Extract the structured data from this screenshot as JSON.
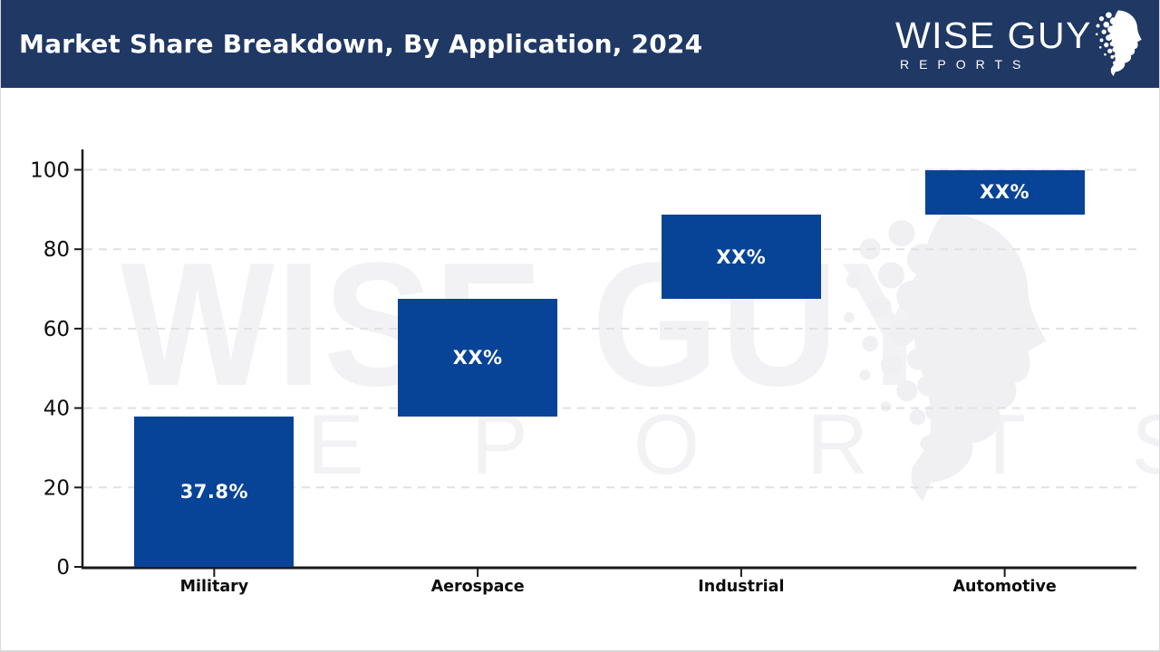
{
  "header": {
    "title": "Market Share Breakdown, By Application, 2024",
    "logo": {
      "wordmark": "WISE GUY",
      "subtext": "REPORTS"
    }
  },
  "watermark": {
    "wordmark": "WISE GUY",
    "subtext": "R E P O R T S"
  },
  "colors": {
    "header_bg": "#1f3864",
    "bar": "#074397",
    "bar_label": "#ffffff",
    "axis": "#1a1a1a",
    "tick_label": "#0d0d0d",
    "gridline": "#e1e1e1",
    "watermark": "#f2f2f4",
    "page_border": "#d9d9d9"
  },
  "chart_data": {
    "type": "bar",
    "variant": "waterfall-floating-segments",
    "title": "Market Share Breakdown, By Application, 2024",
    "categories": [
      "Military",
      "Aerospace",
      "Industrial",
      "Automotive"
    ],
    "segments": [
      {
        "category": "Military",
        "start": 0,
        "end": 37.8,
        "label": "37.8%"
      },
      {
        "category": "Aerospace",
        "start": 37.8,
        "end": 67.5,
        "label": "XX%"
      },
      {
        "category": "Industrial",
        "start": 67.5,
        "end": 88.7,
        "label": "XX%"
      },
      {
        "category": "Automotive",
        "start": 88.7,
        "end": 100,
        "label": "XX%"
      }
    ],
    "xlabel": "",
    "ylabel": "",
    "yticks": [
      0,
      20,
      40,
      60,
      80,
      100
    ],
    "ylim": [
      0,
      104
    ],
    "grid": "horizontal-dashed",
    "legend": "none",
    "bar_color": "#074397",
    "bar_label_color": "#ffffff"
  }
}
